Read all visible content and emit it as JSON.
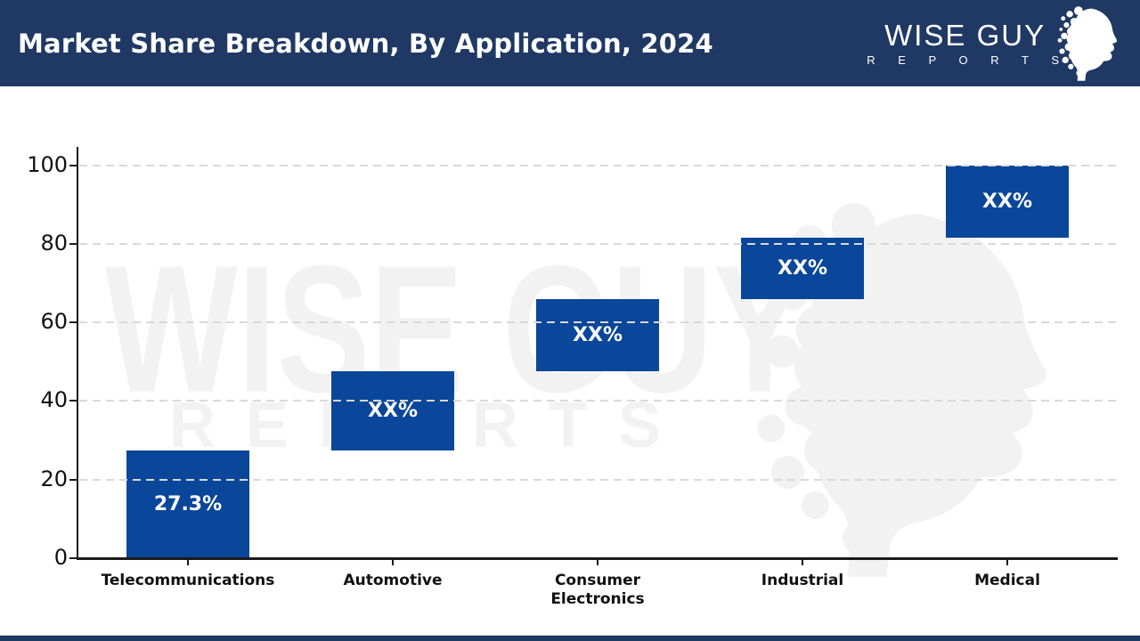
{
  "header": {
    "title": "Market Share Breakdown, By Application, 2024",
    "bg_color": "#1f3864",
    "logo": {
      "brand_line1": "WISE GUY",
      "brand_line2": "R E P O R T S"
    }
  },
  "watermark": {
    "line1": "WISE GUY",
    "line2": "REPORTS"
  },
  "chart_data": {
    "type": "bar",
    "variant": "waterfall",
    "title": "Market Share Breakdown, By Application, 2024",
    "categories": [
      "Telecommunications",
      "Automotive",
      "Consumer Electronics",
      "Industrial",
      "Medical"
    ],
    "category_label_lines": [
      [
        "Telecommunications"
      ],
      [
        "Automotive"
      ],
      [
        "Consumer",
        "Electronics"
      ],
      [
        "Industrial"
      ],
      [
        "Medical"
      ]
    ],
    "segments": [
      {
        "category": "Telecommunications",
        "start": 0,
        "end": 27.3,
        "label": "27.3%"
      },
      {
        "category": "Automotive",
        "start": 27.3,
        "end": 47.5,
        "label": "XX%"
      },
      {
        "category": "Consumer Electronics",
        "start": 47.5,
        "end": 66.0,
        "label": "XX%"
      },
      {
        "category": "Industrial",
        "start": 66.0,
        "end": 81.5,
        "label": "XX%"
      },
      {
        "category": "Medical",
        "start": 81.5,
        "end": 100.0,
        "label": "XX%"
      }
    ],
    "xlabel": "",
    "ylabel": "",
    "ylim": [
      0,
      100
    ],
    "yticks": [
      0,
      20,
      40,
      60,
      80,
      100
    ],
    "grid": {
      "horizontal": true,
      "style": "dashed",
      "color": "#d9d9d9",
      "above_bars": true
    },
    "legend": "none",
    "bar_color": "#0A4699",
    "bar_label_color": "#ffffff",
    "axis_color": "#1a1a1a"
  },
  "footer": {
    "bg_color": "#1f3864"
  }
}
